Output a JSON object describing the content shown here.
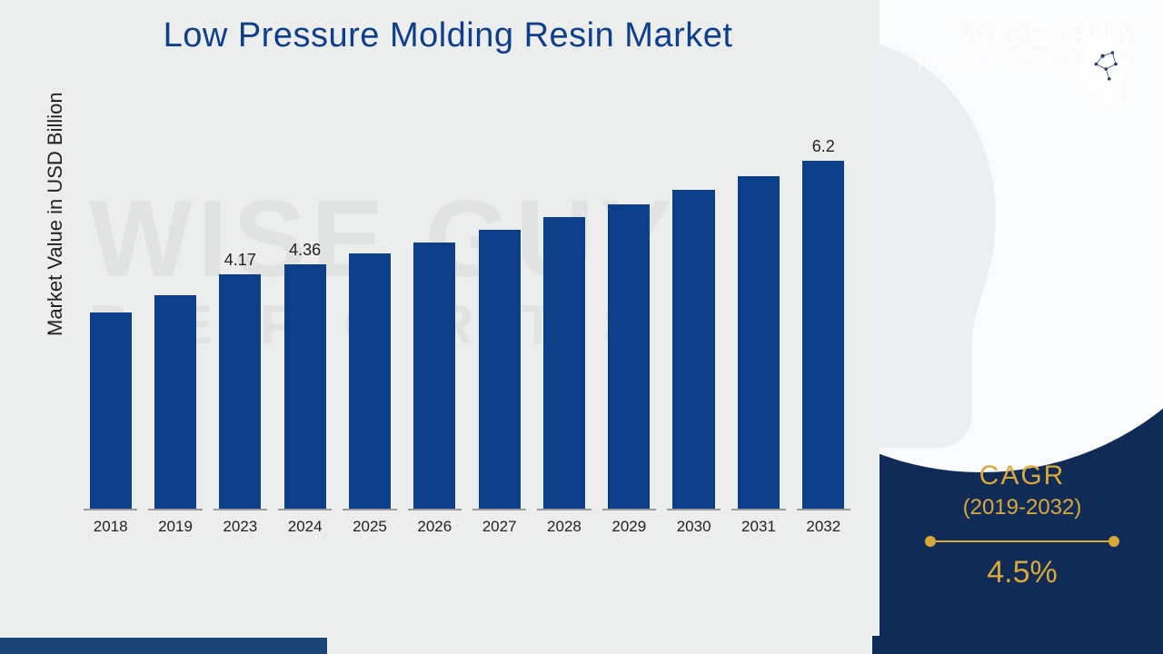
{
  "title": "Low Pressure Molding Resin Market",
  "ylabel": "Market Value in USD Billion",
  "logo": {
    "line1": "WISE GUY",
    "line2": "R E P O R T S"
  },
  "watermark": {
    "line1": "WISE GUY",
    "line2": "R E P O R T S"
  },
  "cagr": {
    "label": "CAGR",
    "period": "(2019-2032)",
    "value": "4.5%"
  },
  "chart": {
    "type": "bar",
    "bar_color": "#0b3f8a",
    "background_color": "#eceded",
    "title_color": "#0f3e8a",
    "title_fontsize": 38,
    "label_fontsize": 22,
    "tick_fontsize": 17,
    "value_fontsize": 18,
    "bar_width": 0.78,
    "ymin": 0,
    "ymax": 6.8,
    "categories": [
      "2018",
      "2019",
      "2023",
      "2024",
      "2025",
      "2026",
      "2027",
      "2028",
      "2029",
      "2030",
      "2031",
      "2032"
    ],
    "values": [
      3.5,
      3.8,
      4.17,
      4.36,
      4.55,
      4.75,
      4.97,
      5.2,
      5.43,
      5.68,
      5.93,
      6.2
    ],
    "show_value_label": [
      false,
      false,
      true,
      true,
      false,
      false,
      false,
      false,
      false,
      false,
      false,
      true
    ]
  },
  "colors": {
    "right_panel": "#0f2b56",
    "circle": "#ffffff",
    "accent": "#d8a93a",
    "bottom_bar": "#1b4675",
    "axis": "#9a9a9a"
  }
}
